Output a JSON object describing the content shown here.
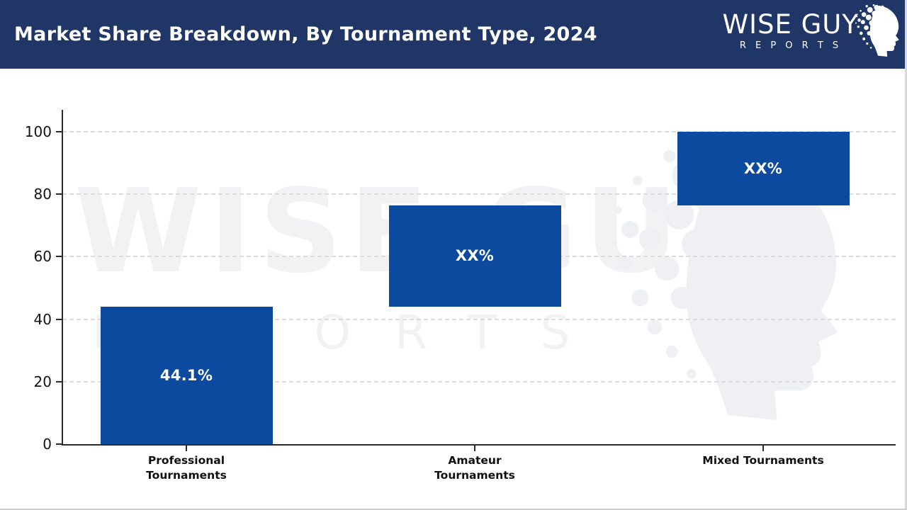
{
  "header": {
    "title": "Market Share Breakdown, By Tournament Type, 2024"
  },
  "logo": {
    "line1": "WISE GUY",
    "line2": "R E P O R T S",
    "head_icon": "dotted-face-profile"
  },
  "watermark": {
    "line1": "WISE GUY",
    "line2": "REPORTS"
  },
  "chart_data": {
    "type": "bar",
    "subtype": "floating-waterfall",
    "title": "Market Share Breakdown, By Tournament Type, 2024",
    "categories": [
      "Professional Tournaments",
      "Amateur Tournaments",
      "Mixed Tournaments"
    ],
    "category_lines": [
      [
        "Professional",
        "Tournaments"
      ],
      [
        "Amateur",
        "Tournaments"
      ],
      [
        "Mixed Tournaments"
      ]
    ],
    "segments": [
      {
        "category": "Professional Tournaments",
        "start": 0,
        "end": 44.1,
        "label": "44.1%"
      },
      {
        "category": "Amateur Tournaments",
        "start": 44.1,
        "end": 76.5,
        "label": "XX%"
      },
      {
        "category": "Mixed Tournaments",
        "start": 76.5,
        "end": 100,
        "label": "XX%"
      }
    ],
    "xlabel": "",
    "ylabel": "",
    "ylim": [
      0,
      107
    ],
    "yticks": [
      0,
      20,
      40,
      60,
      80,
      100
    ],
    "grid": "horizontal-dashed",
    "legend": "none",
    "bar_color": "#0c4aa0",
    "bar_label_color": "#ffffff",
    "gridline_color": "#dcdcdc",
    "axis_color": "#2b2b2b",
    "header_bg_color": "#1f3667"
  }
}
